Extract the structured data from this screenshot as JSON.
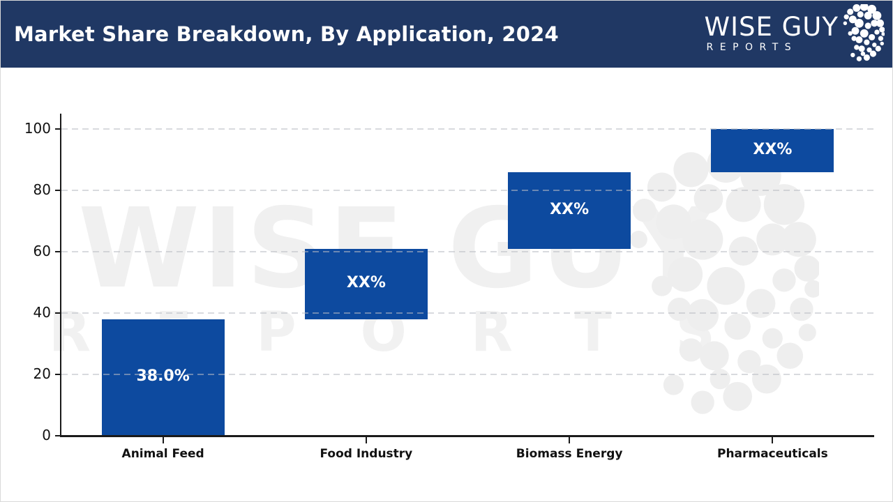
{
  "header": {
    "title": "Market Share Breakdown, By Application, 2024",
    "bg_color": "#203864",
    "logo": {
      "line1": "WISE GUY",
      "line2": "REPORTS"
    }
  },
  "watermark": {
    "line1": "WISE GUY",
    "line2": "REPORTS"
  },
  "chart_data": {
    "type": "bar",
    "subtype": "waterfall",
    "title": "Market Share Breakdown, By Application, 2024",
    "xlabel": "",
    "ylabel": "",
    "categories": [
      "Animal Feed",
      "Food Industry",
      "Biomass Energy",
      "Pharmaceuticals"
    ],
    "bars": [
      {
        "category": "Animal Feed",
        "start": 0,
        "end": 38,
        "label": "38.0%"
      },
      {
        "category": "Food Industry",
        "start": 38,
        "end": 61,
        "label": "XX%"
      },
      {
        "category": "Biomass Energy",
        "start": 61,
        "end": 86,
        "label": "XX%"
      },
      {
        "category": "Pharmaceuticals",
        "start": 86,
        "end": 100,
        "label": "XX%"
      }
    ],
    "ylim": [
      0,
      100
    ],
    "yticks": [
      0,
      20,
      40,
      60,
      80,
      100
    ],
    "grid": "horizontal-dashed",
    "legend": "none",
    "bar_color": "#0d4a9f",
    "bar_label_color": "#ffffff",
    "axis_color": "#1a1a1a"
  }
}
